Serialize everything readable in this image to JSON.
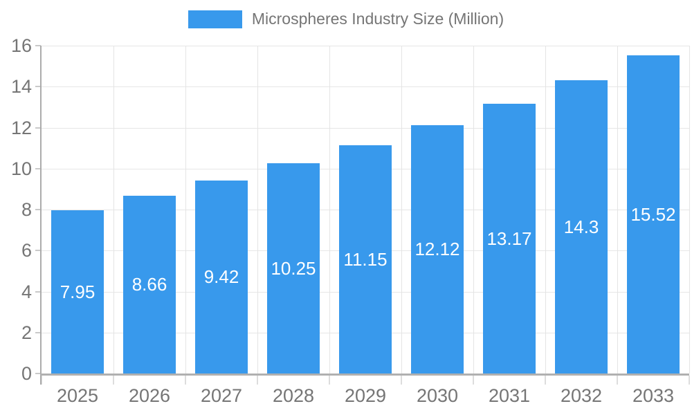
{
  "legend": {
    "label": "Microspheres Industry Size (Million)"
  },
  "chart_data": {
    "type": "bar",
    "title": "Microspheres Industry Size (Million)",
    "categories": [
      "2025",
      "2026",
      "2027",
      "2028",
      "2029",
      "2030",
      "2031",
      "2032",
      "2033"
    ],
    "series": [
      {
        "name": "Microspheres Industry Size (Million)",
        "values": [
          7.95,
          8.66,
          9.42,
          10.25,
          11.15,
          12.12,
          13.17,
          14.3,
          15.52
        ]
      }
    ],
    "value_labels": [
      "7.95",
      "8.66",
      "9.42",
      "10.25",
      "11.15",
      "12.12",
      "13.17",
      "14.3",
      "15.52"
    ],
    "xlabel": "",
    "ylabel": "",
    "ylim": [
      0,
      16
    ],
    "yticks": [
      0,
      2,
      4,
      6,
      8,
      10,
      12,
      14,
      16
    ],
    "ytick_labels": [
      "0",
      "2",
      "4",
      "6",
      "8",
      "10",
      "12",
      "14",
      "16"
    ],
    "grid": true,
    "legend_position": "top-center",
    "colors": {
      "bar": "#3899EC",
      "axis_line": "#b0b0b0",
      "gridline": "#e6e6e6",
      "tick": "#cccccc",
      "label_text": "#757575",
      "value_text": "#ffffff"
    }
  }
}
